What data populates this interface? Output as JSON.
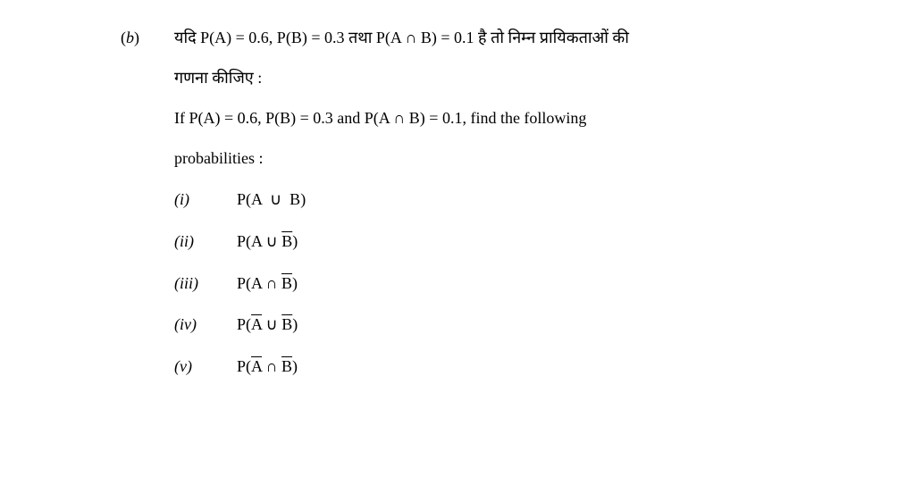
{
  "question": {
    "marker": "(b)",
    "hindi_line1": "यदि P(A) = 0.6, P(B) = 0.3 तथा P(A ∩ B) = 0.1 है तो निम्न प्रायिकताओं की",
    "hindi_line2": "गणना कीजिए :",
    "english_line1": "If P(A) = 0.6, P(B) = 0.3 and P(A ∩ B) = 0.1, find the following",
    "english_line2": "probabilities :",
    "items": [
      {
        "marker": "(i)",
        "prefix": "P(A ∪ B)",
        "a_bar": false,
        "b_bar": false,
        "op": "∪"
      },
      {
        "marker": "(ii)",
        "prefix": "P(A ∪ ",
        "a_bar": false,
        "b_bar": true,
        "op": "∪"
      },
      {
        "marker": "(iii)",
        "prefix": "P(A ∩ ",
        "a_bar": false,
        "b_bar": true,
        "op": "∩"
      },
      {
        "marker": "(iv)",
        "prefix": "P(",
        "a_bar": true,
        "b_bar": true,
        "op": "∪"
      },
      {
        "marker": "(v)",
        "prefix": "P(",
        "a_bar": true,
        "b_bar": true,
        "op": "∩"
      }
    ]
  },
  "style": {
    "font_family": "Times New Roman",
    "font_size_pt": 14,
    "text_color": "#000000",
    "background_color": "#ffffff",
    "line_height": 2.5
  }
}
